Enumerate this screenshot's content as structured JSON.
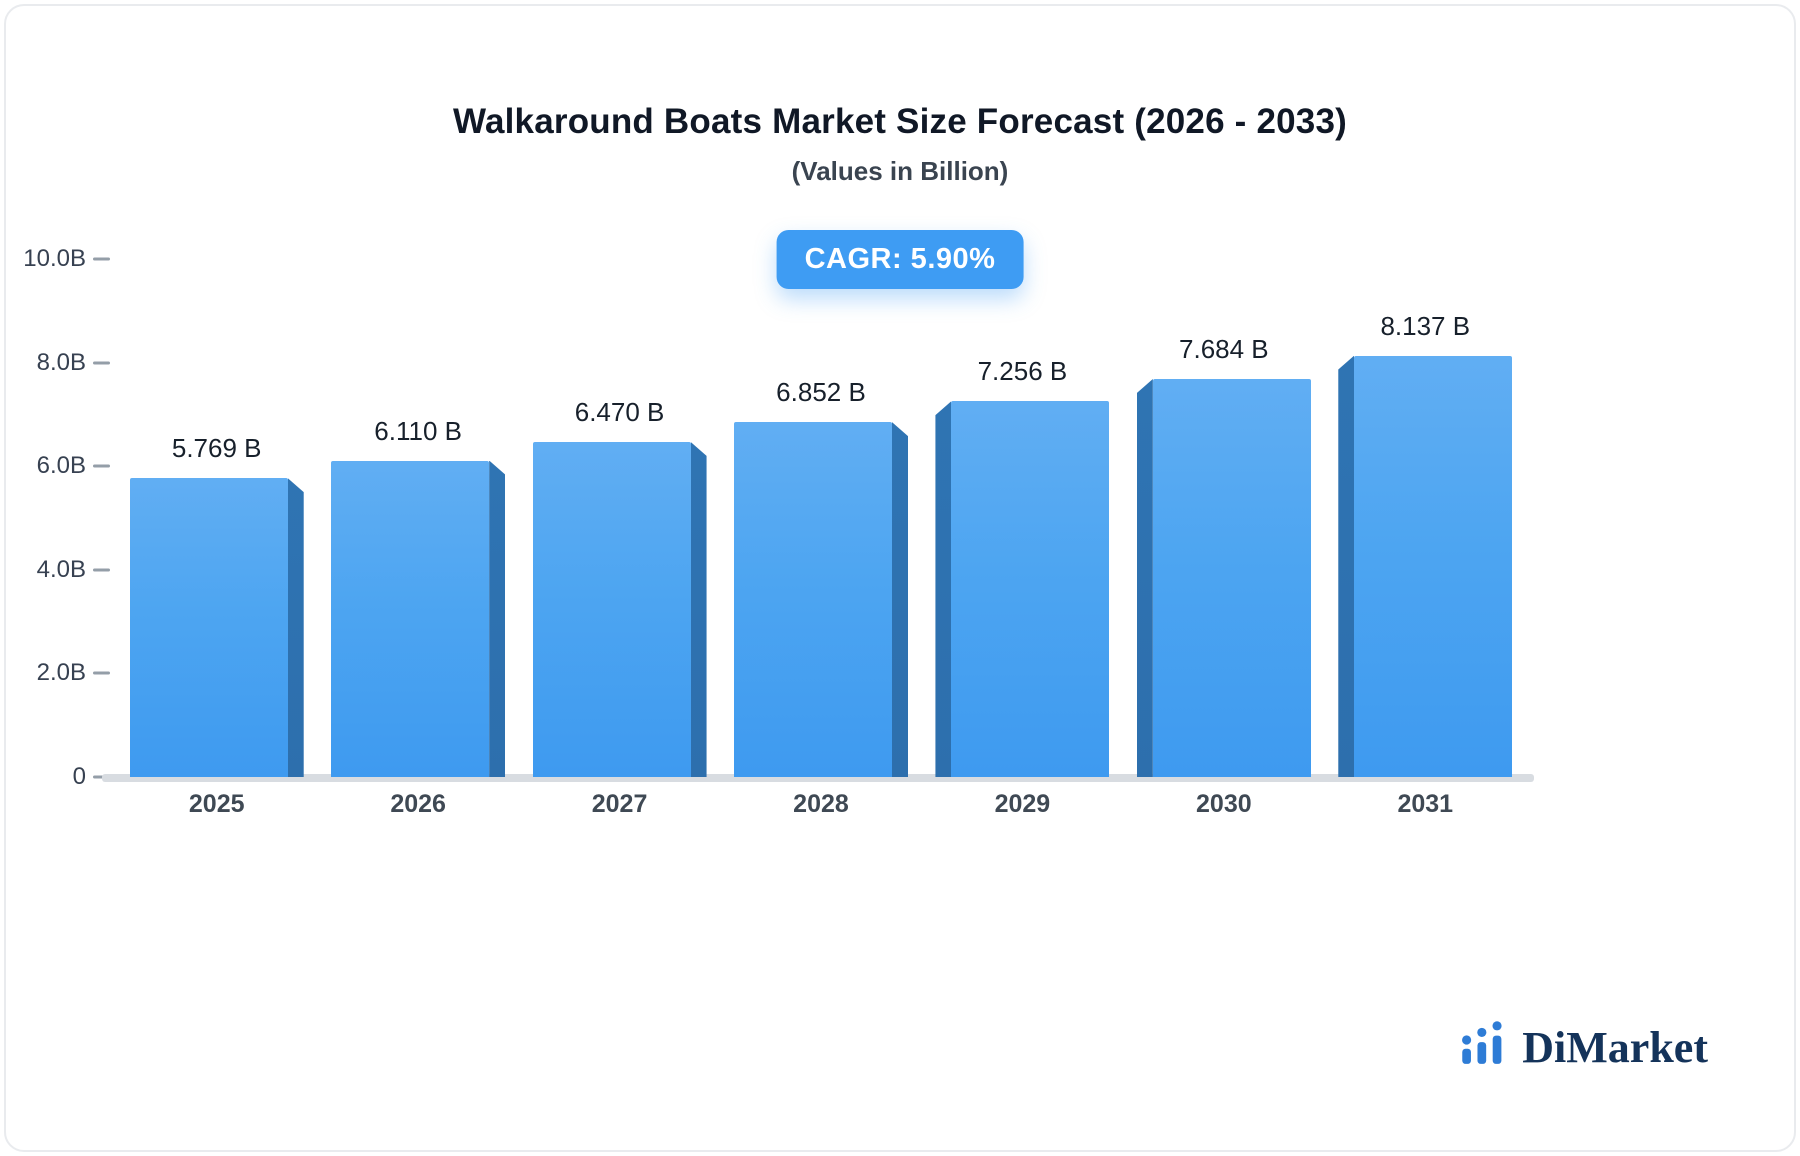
{
  "header": {
    "title": "Walkaround Boats Market Size Forecast (2026 - 2033)",
    "subtitle": "(Values in Billion)"
  },
  "badge": {
    "label": "CAGR: 5.90%",
    "bg_color": "#3e9cf3"
  },
  "chart_data": {
    "type": "bar",
    "title": "Walkaround Boats Market Size Forecast (2026 - 2033)",
    "subtitle": "(Values in Billion)",
    "categories": [
      "2025",
      "2026",
      "2027",
      "2028",
      "2029",
      "2030",
      "2031"
    ],
    "values": [
      5.769,
      6.11,
      6.47,
      6.852,
      7.256,
      7.684,
      8.137
    ],
    "value_labels": [
      "5.769 B",
      "6.110 B",
      "6.470 B",
      "6.852 B",
      "7.256 B",
      "7.684 B",
      "8.137 B"
    ],
    "xlabel": "",
    "ylabel": "",
    "ylim": [
      0,
      10
    ],
    "yticks": [
      {
        "label": "10.0B",
        "value": 10
      },
      {
        "label": "8.0B",
        "value": 8
      },
      {
        "label": "6.0B",
        "value": 6
      },
      {
        "label": "4.0B",
        "value": 4
      },
      {
        "label": "2.0B",
        "value": 2
      },
      {
        "label": "0",
        "value": 0
      }
    ],
    "grid": false,
    "legend": "none",
    "bar_color_top": "#61aef3",
    "bar_color_bottom": "#3e9af0",
    "bar_side_color": "#2d6fad",
    "baseline_color": "#d8dce1"
  },
  "logo": {
    "text": "DiMarket",
    "text_color": "#14335a",
    "icon_color": "#2e7cd6"
  }
}
